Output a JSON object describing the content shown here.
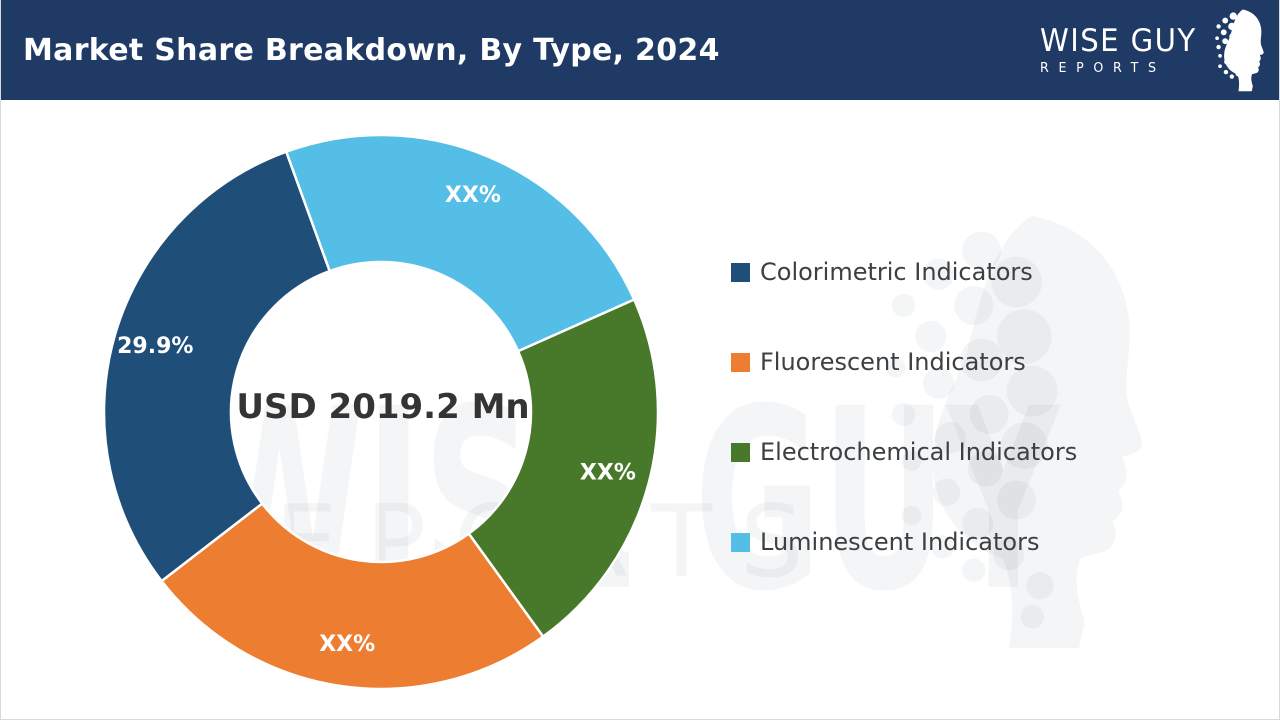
{
  "header": {
    "title": "Market Share Breakdown, By Type, 2024",
    "bg_color": "#203A66"
  },
  "brand": {
    "name": "WISE GUY",
    "tagline": "REPORTS"
  },
  "watermark": {
    "line1": "WISE GUY",
    "line2": "REPORTS"
  },
  "chart_data": {
    "type": "pie",
    "variant": "donut",
    "title": "Market Share Breakdown, By Type, 2024",
    "center_label": "USD 2019.2 Mn",
    "start_angle_deg": 110,
    "direction": "ccw",
    "legend_position": "right",
    "categories": [
      "Colorimetric Indicators",
      "Fluorescent Indicators",
      "Electrochemical Indicators",
      "Luminescent Indicators"
    ],
    "values": [
      29.9,
      24.5,
      21.7,
      23.9
    ],
    "slice_labels": [
      "29.9%",
      "XX%",
      "XX%",
      "XX%"
    ],
    "colors": [
      "#1F4E79",
      "#ED7D31",
      "#48782A",
      "#54BEE7"
    ],
    "slice_label_color": "#FFFFFF",
    "divider_color": "#FFFFFF"
  }
}
